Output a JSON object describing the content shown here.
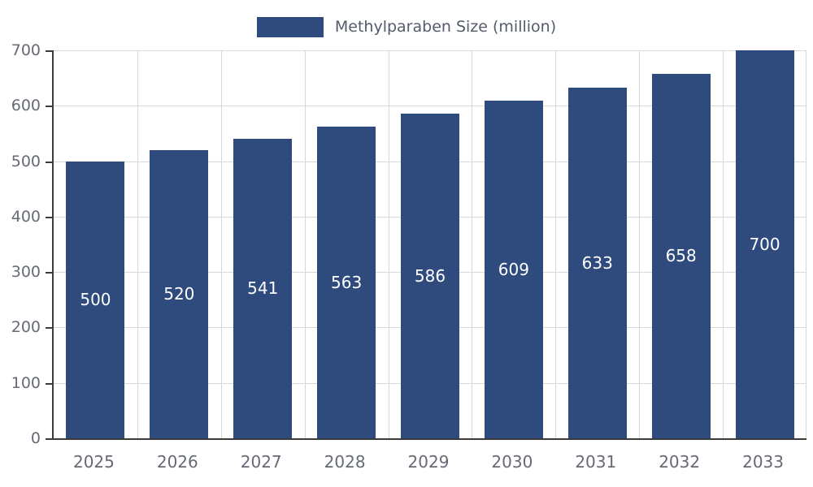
{
  "legend": {
    "label": "Methylparaben Size (million)"
  },
  "colors": {
    "bar": "#2f4b7e",
    "grid": "#d8d8d8",
    "axis": "#3b3b3b",
    "tick_label": "#666a73",
    "value_label": "#ffffff"
  },
  "chart_data": {
    "type": "bar",
    "title": "",
    "series_name": "Methylparaben Size (million)",
    "categories": [
      "2025",
      "2026",
      "2027",
      "2028",
      "2029",
      "2030",
      "2031",
      "2032",
      "2033"
    ],
    "values": [
      500,
      520,
      541,
      563,
      586,
      609,
      633,
      658,
      700
    ],
    "xlabel": "",
    "ylabel": "",
    "ylim": [
      0,
      700
    ],
    "ytick_step": 100,
    "yticks": [
      0,
      100,
      200,
      300,
      400,
      500,
      600,
      700
    ],
    "grid": true,
    "legend_position": "top",
    "value_labels": "inside-middle"
  }
}
